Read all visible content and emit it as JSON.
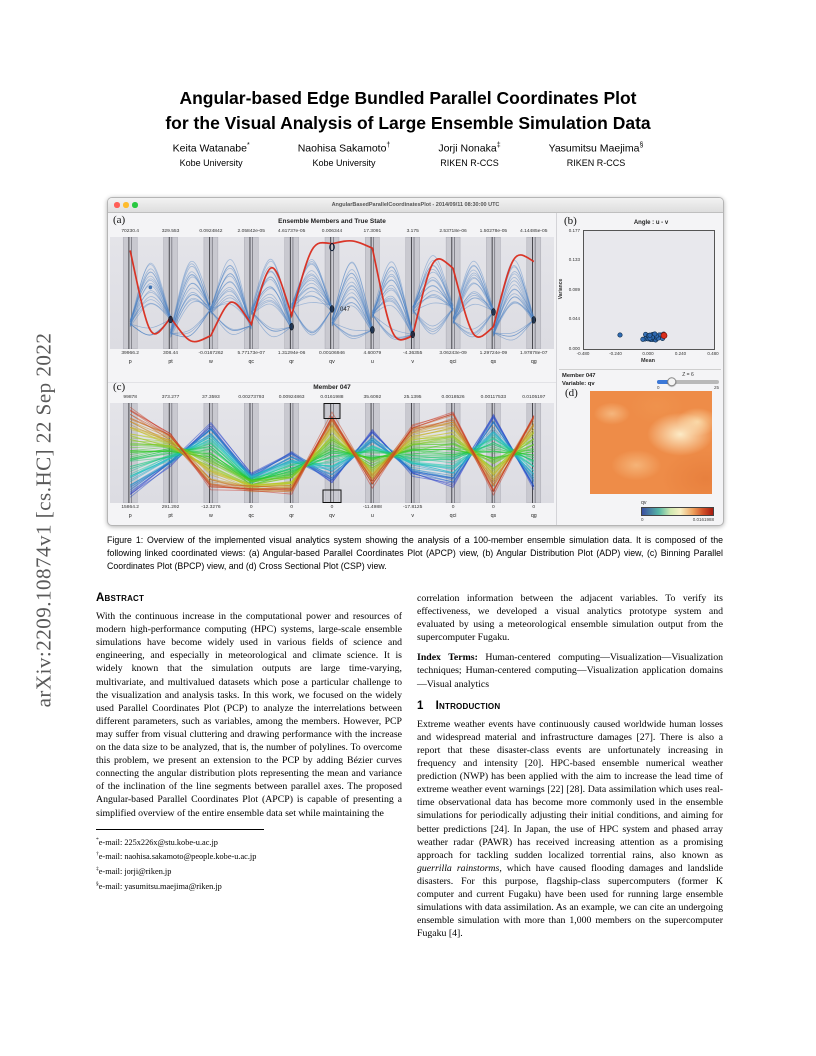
{
  "arxiv_label": "arXiv:2209.10874v1  [cs.HC]  22 Sep 2022",
  "title_line1": "Angular-based Edge Bundled Parallel Coordinates Plot",
  "title_line2": "for the Visual Analysis of Large Ensemble Simulation Data",
  "authors": [
    {
      "name": "Keita Watanabe",
      "marker": "*",
      "affiliation": "Kobe University"
    },
    {
      "name": "Naohisa Sakamoto",
      "marker": "†",
      "affiliation": "Kobe University"
    },
    {
      "name": "Jorji Nonaka",
      "marker": "‡",
      "affiliation": "RIKEN R-CCS"
    },
    {
      "name": "Yasumitsu Maejima",
      "marker": "§",
      "affiliation": "RIKEN R-CCS"
    }
  ],
  "figure": {
    "window_title": "AngularBasedParallelCoordinatesPlot  -  2014/09/11 08:30:00 UTC",
    "panel_a": {
      "label": "(a)",
      "title": "Ensemble Members and True State",
      "top_values": [
        "70230.4",
        "329.553",
        "0.0924842",
        "2.05842e-05",
        "4.61737e-05",
        "0.006344",
        "17.3091",
        "3.175",
        "2.53718e-06",
        "1.50278e-05",
        "4.14485e-05"
      ],
      "bottom_values": [
        "39966.2",
        "308.44",
        "-0.0167262",
        "5.77173e-07",
        "1.31294e-06",
        "0.00106946",
        "4.60079",
        "-4.36355",
        "3.06243e-09",
        "1.29724e-09",
        "1.97878e-07"
      ],
      "axis_labels": [
        "p",
        "pt",
        "w",
        "qc",
        "qr",
        "qv",
        "u",
        "v",
        "qci",
        "qs",
        "qg"
      ],
      "member_tag": "047",
      "line_color": "#4a80c4",
      "highlight_color": "#d92b1c"
    },
    "panel_b": {
      "label": "(b)",
      "title": "Angle : u - v",
      "ylabel": "Variance",
      "xlabel": "Mean",
      "yticks": [
        "0.177",
        "0.133",
        "0.089",
        "0.044",
        "0.000"
      ],
      "xticks": [
        "-0.480",
        "-0.240",
        "0.000",
        "0.240",
        "0.480"
      ],
      "point_color": "#2f6cb5",
      "highlight_color": "#da2f1d"
    },
    "panel_c": {
      "label": "(c)",
      "title": "Member 047",
      "top_values": [
        "99878",
        "373.277",
        "37.3593",
        "0.00273793",
        "0.00924863",
        "0.0161988",
        "35.6092",
        "25.1395",
        "0.0018526",
        "0.00117533",
        "0.0105197"
      ],
      "bottom_values": [
        "15864.2",
        "291.292",
        "-12.3276",
        "0",
        "0",
        "0",
        "-11.4988",
        "-17.8125",
        "0",
        "0",
        "0"
      ],
      "axis_labels": [
        "p",
        "pt",
        "w",
        "qc",
        "qr",
        "qv",
        "u",
        "v",
        "qci",
        "qs",
        "qg"
      ]
    },
    "panel_d": {
      "label": "(d)"
    },
    "inspector": {
      "member": "Member 047",
      "variable": "Variable: qv",
      "slider_label": "Z = 6",
      "slider_value": 6,
      "slider_min": "0",
      "slider_max": "25"
    },
    "colorbar": {
      "label": "qv",
      "min": "0",
      "max": "0.0161988"
    }
  },
  "caption": "Figure 1: Overview of the implemented visual analytics system showing the analysis of a 100-member ensemble simulation data. It is composed of the following linked coordinated views: (a) Angular-based Parallel Coordinates Plot (APCP) view, (b) Angular Distribution Plot (ADP) view, (c) Binning Parallel Coordinates Plot (BPCP) view, and (d) Cross Sectional Plot (CSP) view.",
  "abstract": {
    "heading": "Abstract",
    "text": "With the continuous increase in the computational power and resources of modern high-performance computing (HPC) systems, large-scale ensemble simulations have become widely used in various fields of science and engineering, and especially in meteorological and climate science. It is widely known that the simulation outputs are large time-varying, multivariate, and multivalued datasets which pose a particular challenge to the visualization and analysis tasks. In this work, we focused on the widely used Parallel Coordinates Plot (PCP) to analyze the interrelations between different parameters, such as variables, among the members. However, PCP may suffer from visual cluttering and drawing performance with the increase on the data size to be analyzed, that is, the number of polylines. To overcome this problem, we present an extension to the PCP by adding Bézier curves connecting the angular distribution plots representing the mean and variance of the inclination of the line segments between parallel axes. The proposed Angular-based Parallel Coordinates Plot (APCP) is capable of presenting a simplified overview of the entire ensemble data set while maintaining the"
  },
  "footnotes": [
    {
      "marker": "*",
      "text": "e-mail: 225x226x@stu.kobe-u.ac.jp"
    },
    {
      "marker": "†",
      "text": "e-mail: naohisa.sakamoto@people.kobe-u.ac.jp"
    },
    {
      "marker": "‡",
      "text": "e-mail: jorji@riken.jp"
    },
    {
      "marker": "§",
      "text": "e-mail: yasumitsu.maejima@riken.jp"
    }
  ],
  "right_column": {
    "continuation": "correlation information between the adjacent variables. To verify its effectiveness, we developed a visual analytics prototype system and evaluated by using a meteorological ensemble simulation output from the supercomputer Fugaku.",
    "index_terms_label": "Index Terms:",
    "index_terms": "Human-centered computing—Visualization—Visualization techniques; Human-centered computing—Visualization application domains—Visual analytics",
    "section_number": "1",
    "section_title": "Introduction",
    "intro_before_italic": "Extreme weather events have continuously caused worldwide human losses and widespread material and infrastructure damages [27]. There is also a report that these disaster-class events are unfortunately increasing in frequency and intensity [20]. HPC-based ensemble numerical weather prediction (NWP) has been applied with the aim to increase the lead time of extreme weather event warnings [22] [28]. Data assimilation which uses real-time observational data has become more commonly used in the ensemble simulations for periodically adjusting their initial conditions, and aiming for better predictions [24]. In Japan, the use of HPC system and phased array weather radar (PAWR) has received increasing attention as a promising approach for tackling sudden localized torrential rains, also known as ",
    "intro_italic": "guerrilla rainstorms",
    "intro_after_italic": ", which have caused flooding damages and landslide disasters. For this purpose, flagship-class supercomputers (former K computer and current Fugaku) have been used for running large ensemble simulations with data assimilation. As an example, we can cite an undergoing ensemble simulation with more than 1,000 members on the supercomputer Fugaku [4]."
  }
}
